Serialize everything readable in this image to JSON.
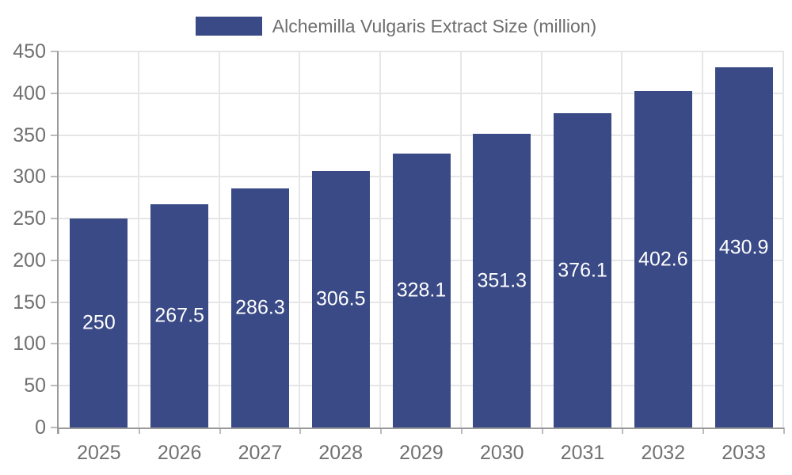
{
  "legend": {
    "label": "Alchemilla Vulgaris Extract Size (million)"
  },
  "colors": {
    "bar": "#3A4A86",
    "value_label": "#FFFFFF",
    "axis_label": "#717171",
    "legend_label": "#6E6E6E",
    "grid_line": "#E6E6E6",
    "axis_line": "#9A9A9A",
    "tick": "#BBBBBB",
    "background": "#FFFFFF"
  },
  "chart_data": {
    "type": "bar",
    "categories": [
      "2025",
      "2026",
      "2027",
      "2028",
      "2029",
      "2030",
      "2031",
      "2032",
      "2033"
    ],
    "values": [
      250,
      267.5,
      286.3,
      306.5,
      328.1,
      351.3,
      376.1,
      402.6,
      430.9
    ],
    "value_labels": [
      "250",
      "267.5",
      "286.3",
      "306.5",
      "328.1",
      "351.3",
      "376.1",
      "402.6",
      "430.9"
    ],
    "title": "",
    "legend": "Alchemilla Vulgaris Extract Size (million)",
    "xlabel": "",
    "ylabel": "",
    "ylim": [
      0,
      450
    ],
    "ytick_step": 50,
    "ytick_labels": [
      "0",
      "50",
      "100",
      "150",
      "200",
      "250",
      "300",
      "350",
      "400",
      "450"
    ],
    "grid": true,
    "legend_position": "top-center",
    "bar_color": "#3A4A86",
    "value_label_position": "inside-center"
  }
}
